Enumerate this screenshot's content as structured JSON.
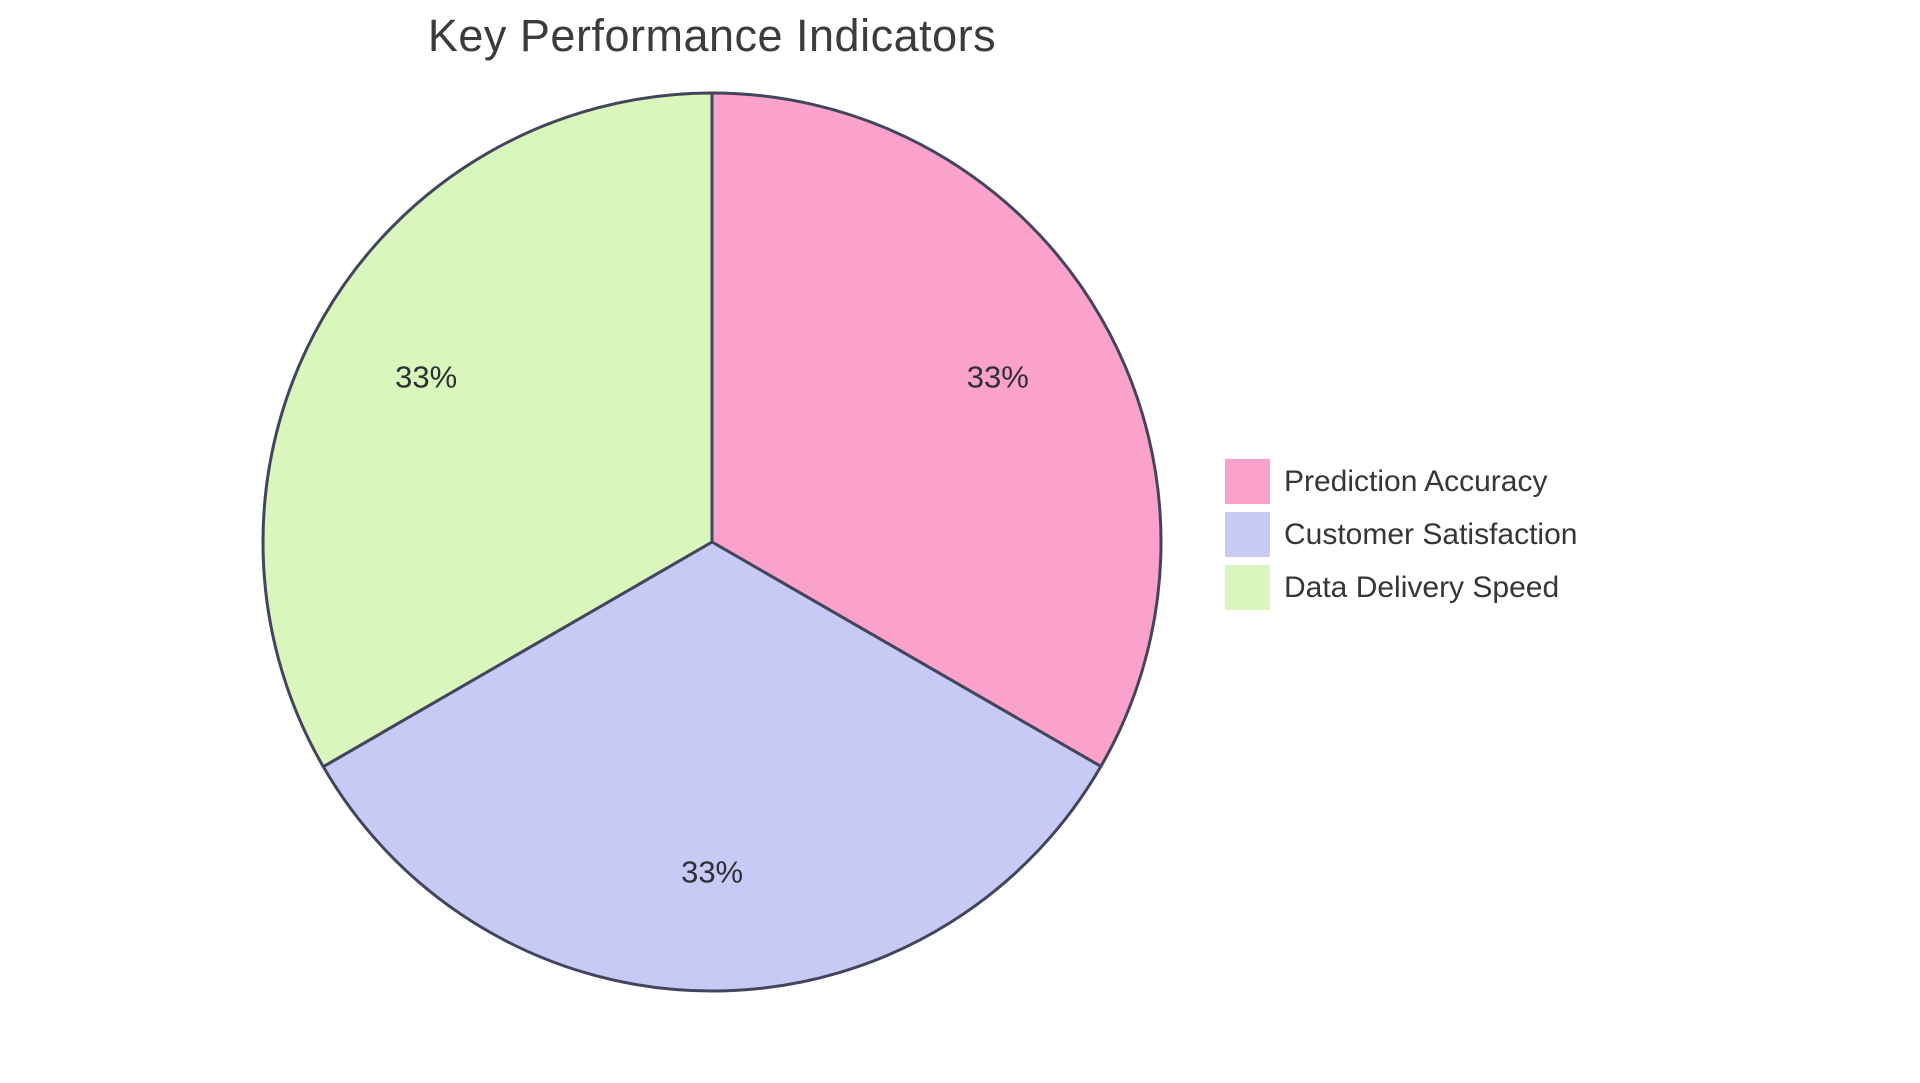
{
  "page": {
    "background_color": "#ffffff"
  },
  "chart_data": {
    "type": "pie",
    "title": "Key Performance Indicators",
    "categories": [
      "Prediction Accuracy",
      "Customer Satisfaction",
      "Data Delivery Speed"
    ],
    "values": [
      33.33,
      33.33,
      33.34
    ],
    "percent_labels": [
      "33%",
      "33%",
      "33%"
    ],
    "colors": [
      "#FBA2CC",
      "#C7CAF5",
      "#D9F7BD"
    ],
    "slice_border_color": "#42455C",
    "slice_border_width": 3,
    "slice_label_color": "#2F2F38",
    "title_color": "#3C3C3C",
    "legend_text_color": "#363636",
    "legend_position": "right",
    "start_angle": "top",
    "direction": "clockwise"
  }
}
